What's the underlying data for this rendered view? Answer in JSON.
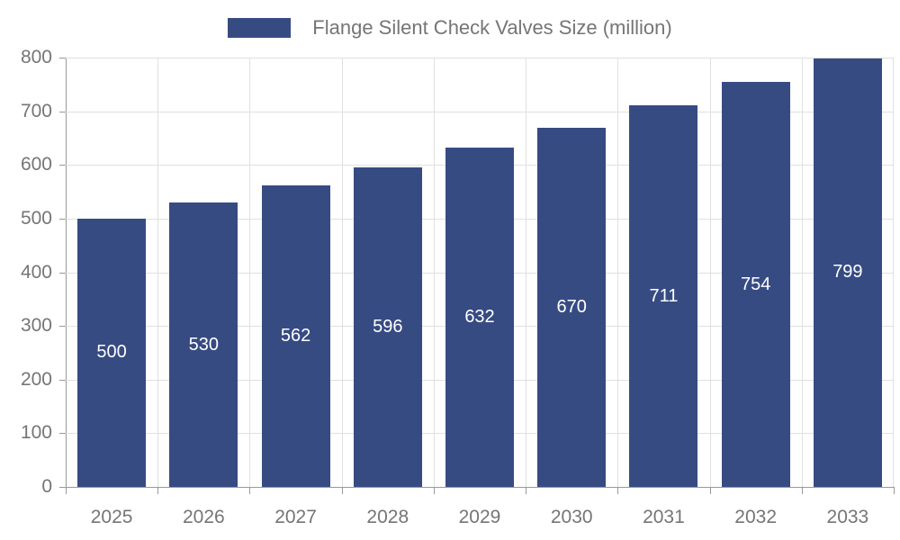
{
  "chart_data": {
    "type": "bar",
    "title": "",
    "legend_label": "Flange Silent Check Valves Size (million)",
    "categories": [
      "2025",
      "2026",
      "2027",
      "2028",
      "2029",
      "2030",
      "2031",
      "2032",
      "2033"
    ],
    "values": [
      500,
      530,
      562,
      596,
      632,
      670,
      711,
      754,
      799
    ],
    "xlabel": "",
    "ylabel": "",
    "ylim": [
      0,
      800
    ],
    "yticks": [
      0,
      100,
      200,
      300,
      400,
      500,
      600,
      700,
      800
    ],
    "grid": "on",
    "legend_position": "top",
    "colors": {
      "bar": "#374b83",
      "bar_label_text": "#ffffff",
      "grid_line": "#e0e0e0",
      "axis_line": "#999999",
      "tick_text": "#757575",
      "legend_text": "#757575",
      "background": "#ffffff"
    }
  }
}
